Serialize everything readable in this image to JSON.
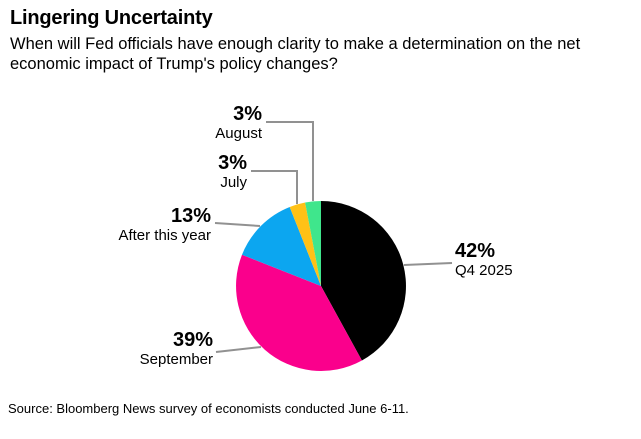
{
  "header": {
    "title": "Lingering Uncertainty",
    "subtitle": "When will Fed officials have enough clarity to make a determination on the net economic impact of Trump's policy changes?"
  },
  "source_note": "Source: Bloomberg News survey of economists conducted June 6-11.",
  "chart_data": {
    "type": "pie",
    "title": "Lingering Uncertainty",
    "subtitle": "When will Fed officials have enough clarity to make a determination on the net economic impact of Trump's policy changes?",
    "source": "Source: Bloomberg News survey of economists conducted June 6-11.",
    "start_angle": "12 o'clock, drawn clockwise",
    "legend_position": "none (direct labels with leader lines)",
    "slices": [
      {
        "label": "Q4 2025",
        "pct": 42,
        "pct_label": "42%",
        "color": "#000000"
      },
      {
        "label": "September",
        "pct": 39,
        "pct_label": "39%",
        "color": "#FA008C"
      },
      {
        "label": "After this year",
        "pct": 13,
        "pct_label": "13%",
        "color": "#0CA6F0"
      },
      {
        "label": "July",
        "pct": 3,
        "pct_label": "3%",
        "color": "#FFC116"
      },
      {
        "label": "August",
        "pct": 3,
        "pct_label": "3%",
        "color": "#3FE68C"
      }
    ],
    "leader_line_color": "#919191"
  }
}
